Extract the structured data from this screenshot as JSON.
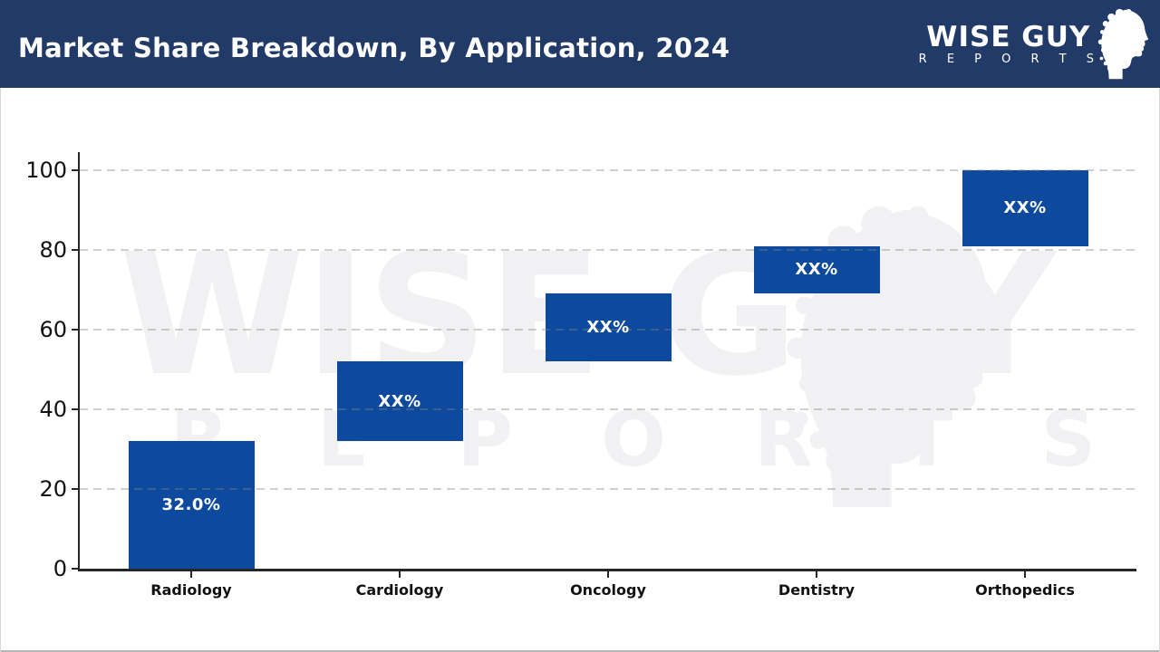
{
  "header": {
    "title": "Market Share Breakdown, By Application, 2024"
  },
  "logo": {
    "line1": "WISE GUY",
    "line2": "R E P O R T S"
  },
  "watermark": {
    "line1": "WISE GUY",
    "line2": "R E P O R T S"
  },
  "colors": {
    "header_bg": "#213A68",
    "bar": "#0D4A9E",
    "axis": "#262626",
    "grid": "rgba(130,130,130,0.38)",
    "watermark": "#F1F1F3",
    "title_text": "#FFFFFF",
    "tick_text": "#111111",
    "bar_label_text": "#FFFFFF"
  },
  "chart_data": {
    "type": "bar",
    "subtype": "waterfall",
    "title": "Market Share Breakdown, By Application, 2024",
    "xlabel": "",
    "ylabel": "",
    "ylim": [
      0,
      100
    ],
    "yticks": [
      0,
      20,
      40,
      60,
      80,
      100
    ],
    "grid": "dashed-horizontal",
    "legend": "none",
    "categories": [
      "Radiology",
      "Cardiology",
      "Oncology",
      "Dentistry",
      "Orthopedics"
    ],
    "bars": [
      {
        "category": "Radiology",
        "start": 0,
        "end": 32,
        "value": 32,
        "label": "32.0%"
      },
      {
        "category": "Cardiology",
        "start": 32,
        "end": 52,
        "value": 20,
        "label": "XX%"
      },
      {
        "category": "Oncology",
        "start": 52,
        "end": 69,
        "value": 17,
        "label": "XX%"
      },
      {
        "category": "Dentistry",
        "start": 69,
        "end": 81,
        "value": 12,
        "label": "XX%"
      },
      {
        "category": "Orthopedics",
        "start": 81,
        "end": 100,
        "value": 19,
        "label": "XX%"
      }
    ]
  }
}
